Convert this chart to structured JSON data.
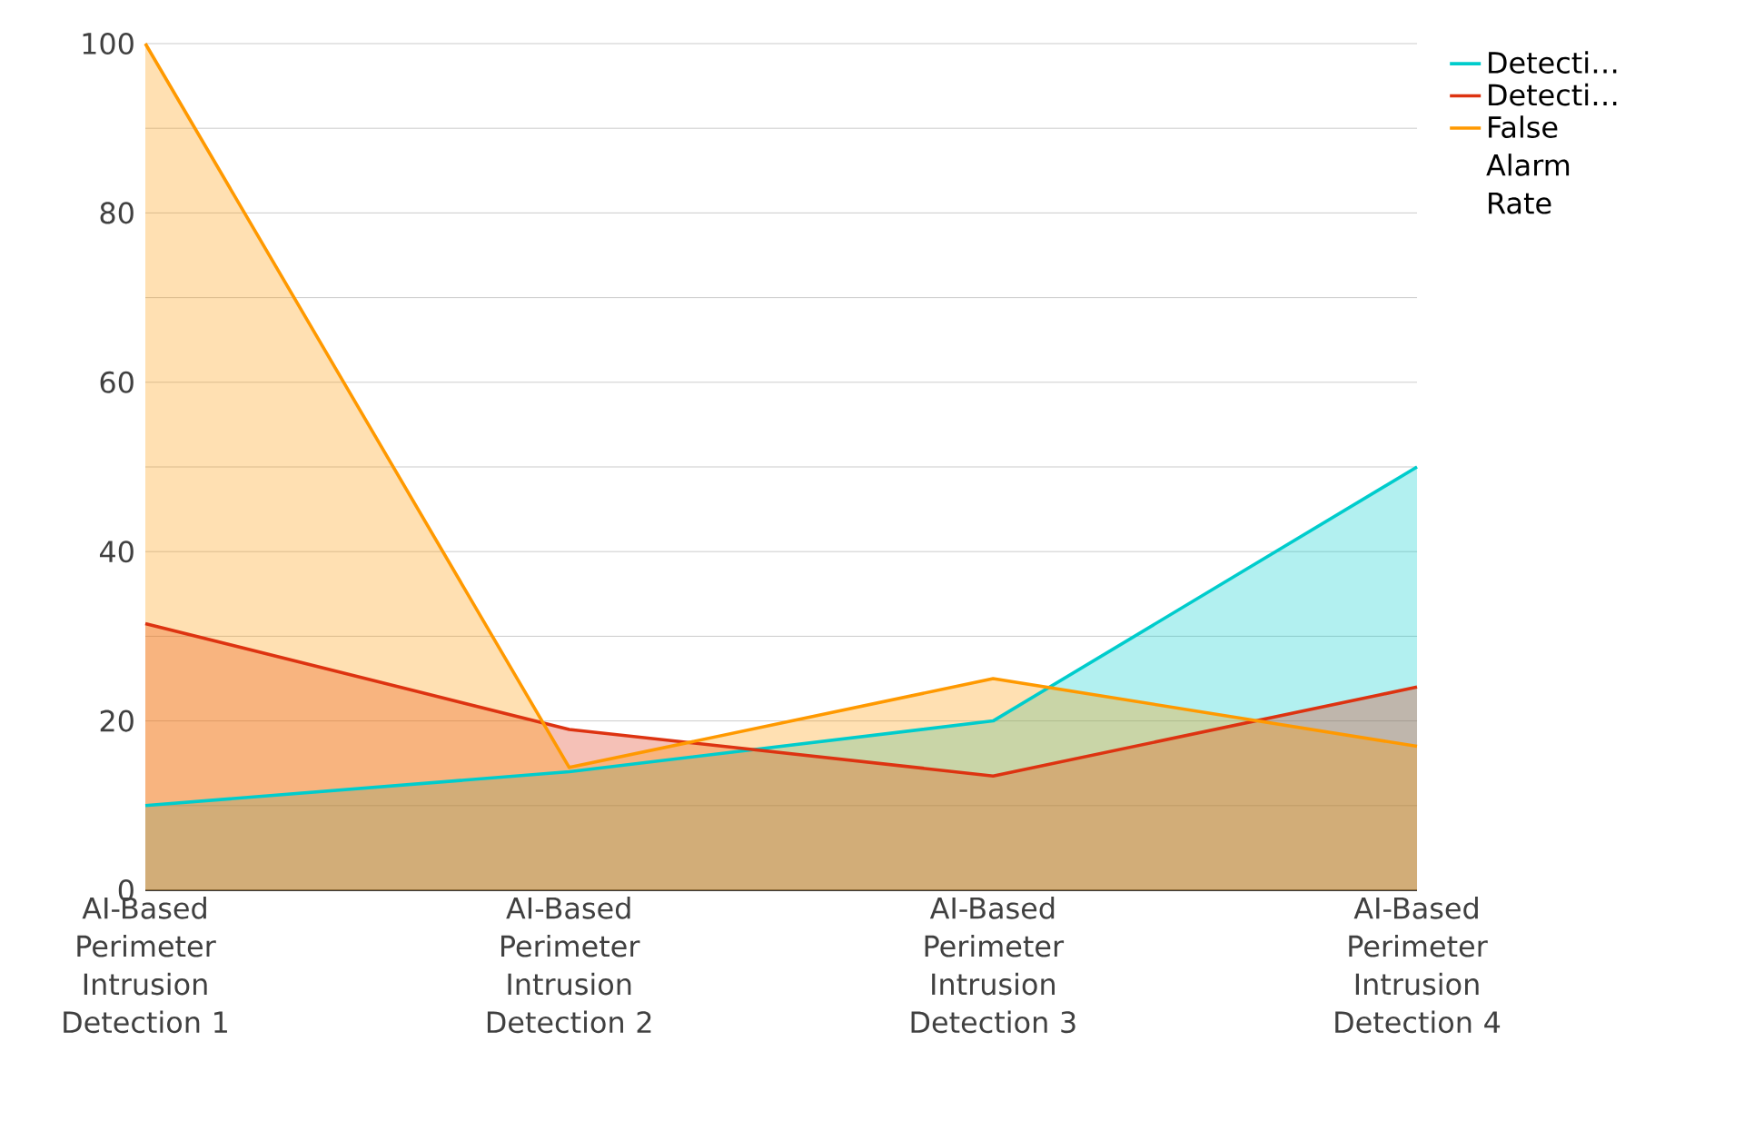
{
  "chart_data": {
    "type": "area",
    "categories": [
      "AI-Based Perimeter Intrusion Detection 1",
      "AI-Based Perimeter Intrusion Detection 2",
      "AI-Based Perimeter Intrusion Detection 3",
      "AI-Based Perimeter Intrusion Detection 4"
    ],
    "series": [
      {
        "name": "Detecti…",
        "color": "#00cccc",
        "values": [
          10,
          14,
          20,
          50
        ]
      },
      {
        "name": "Detecti…",
        "color": "#dd3311",
        "values": [
          31.5,
          19,
          13.5,
          24
        ]
      },
      {
        "name": "False Alarm Rate",
        "color": "#ff9900",
        "values": [
          100,
          14.5,
          25,
          17
        ]
      }
    ],
    "ylim": [
      0,
      100
    ],
    "yticks": [
      0,
      {
        "value": 10,
        "label": null
      },
      20,
      {
        "value": 30,
        "label": null
      },
      40,
      {
        "value": 50,
        "label": null
      },
      60,
      {
        "value": 70,
        "label": null
      },
      80,
      {
        "value": 90,
        "label": null
      },
      100
    ],
    "grid": "y",
    "legend": "top right",
    "line_style": "solid",
    "marker": "none"
  }
}
